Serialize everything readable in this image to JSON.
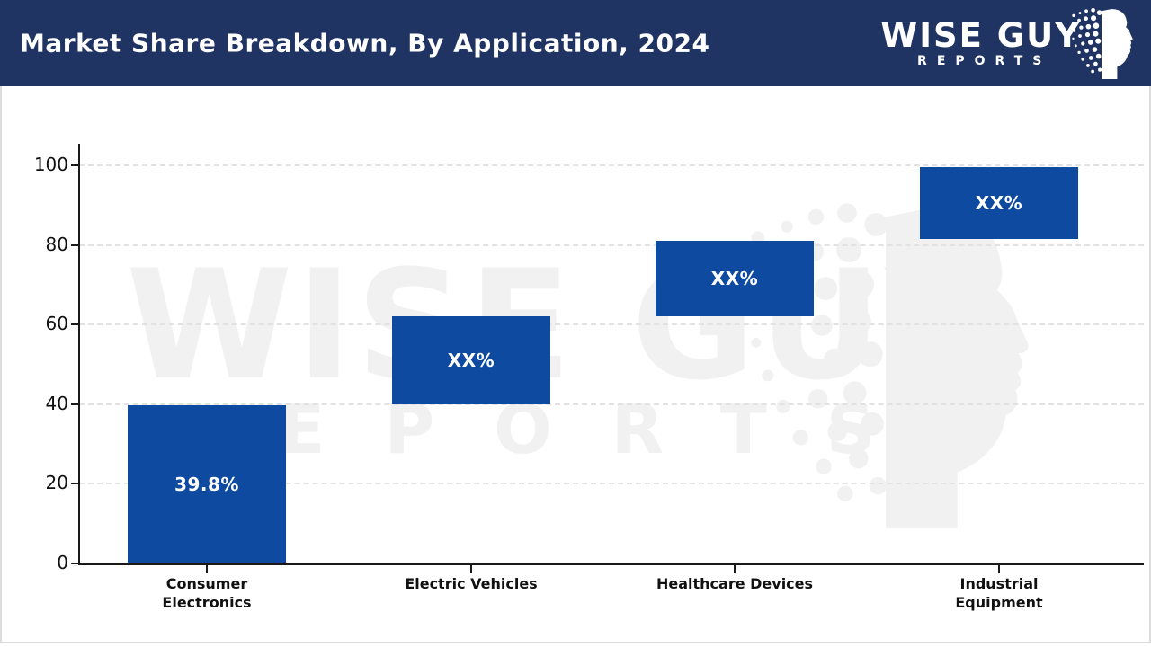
{
  "header": {
    "title": "Market Share Breakdown, By Application, 2024",
    "logo": {
      "line1": "WISE GUY",
      "line2": "REPORTS"
    }
  },
  "watermark": {
    "line1": "WISE GUY",
    "line2": "REPORTS"
  },
  "colors": {
    "header_bg": "#1f3463",
    "bar_blue": "#0d4aa0",
    "bar_label": "#ffffff",
    "watermark_gray": "#f1f1f2",
    "grid_gray": "#e2e2e2",
    "axis_black": "#1a1a1a",
    "frame_border": "#dcdcdc"
  },
  "chart_data": {
    "type": "bar",
    "variant": "waterfall (floating segment bars)",
    "title": "Market Share Breakdown, By Application, 2024",
    "categories": [
      "Consumer Electronics",
      "Electric Vehicles",
      "Healthcare Devices",
      "Industrial Equipment"
    ],
    "bars": [
      {
        "category": "Consumer Electronics",
        "category_lines": [
          "Consumer",
          "Electronics"
        ],
        "start": 0,
        "end": 39.8,
        "label": "39.8%"
      },
      {
        "category": "Electric Vehicles",
        "category_lines": [
          "Electric Vehicles"
        ],
        "start": 40,
        "end": 62,
        "label": "XX%"
      },
      {
        "category": "Healthcare Devices",
        "category_lines": [
          "Healthcare Devices"
        ],
        "start": 62,
        "end": 81,
        "label": "XX%"
      },
      {
        "category": "Industrial Equipment",
        "category_lines": [
          "Industrial",
          "Equipment"
        ],
        "start": 81.5,
        "end": 99.5,
        "label": "XX%"
      }
    ],
    "yticks": [
      0,
      20,
      40,
      60,
      80,
      100
    ],
    "ylim": [
      0,
      105
    ],
    "xlabel": "",
    "ylabel": "",
    "grid": "horizontal dashed lines, on",
    "legend": "none",
    "bar_color": "#0d4aa0",
    "bar_label_color": "#ffffff"
  }
}
